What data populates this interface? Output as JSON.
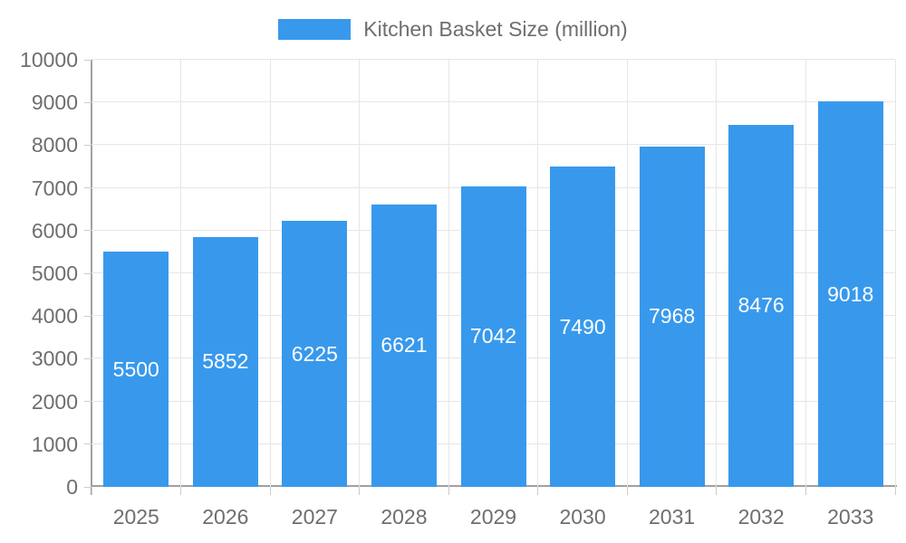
{
  "legend": {
    "label": "Kitchen Basket Size (million)"
  },
  "colors": {
    "bar": "#3899EC",
    "bar_label": "#FFFFFF",
    "axis": "#A0A0A0",
    "grid": "#E6E6E6",
    "tick": "#CCCCCC",
    "text": "#6E6E6E"
  },
  "chart_data": {
    "type": "bar",
    "title": "Kitchen Basket Size (million)",
    "categories": [
      "2025",
      "2026",
      "2027",
      "2028",
      "2029",
      "2030",
      "2031",
      "2032",
      "2033"
    ],
    "values": [
      5500,
      5852,
      6225,
      6621,
      7042,
      7490,
      7968,
      8476,
      9018
    ],
    "series": [
      {
        "name": "Kitchen Basket Size (million)",
        "values": [
          5500,
          5852,
          6225,
          6621,
          7042,
          7490,
          7968,
          8476,
          9018
        ]
      }
    ],
    "xlabel": "",
    "ylabel": "",
    "ylim": [
      0,
      10000
    ],
    "ytick_step": 1000,
    "ytick_labels": [
      "0",
      "1000",
      "2000",
      "3000",
      "4000",
      "5000",
      "6000",
      "7000",
      "8000",
      "9000",
      "10000"
    ],
    "grid": true,
    "legend_position": "top",
    "bar_labels_inside": true
  }
}
